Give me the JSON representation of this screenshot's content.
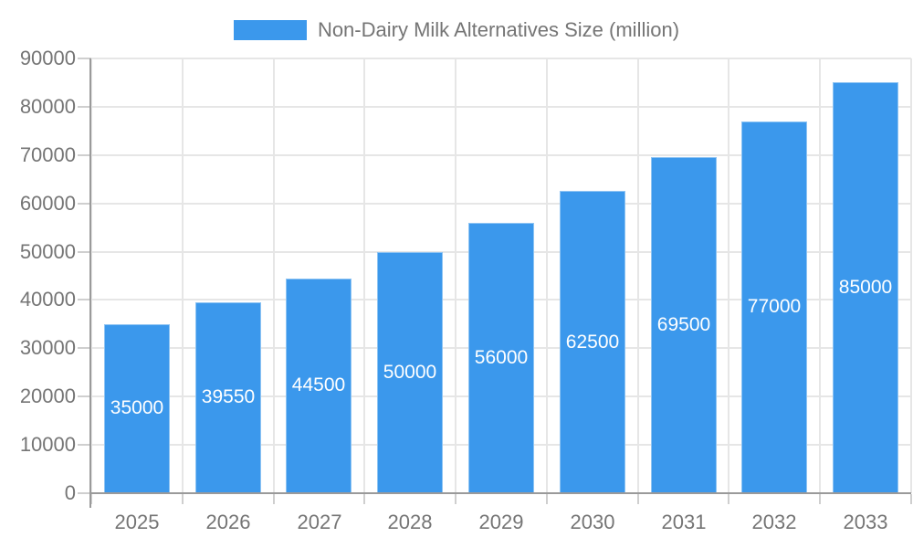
{
  "legend": {
    "label": "Non-Dairy Milk Alternatives Size (million)"
  },
  "chart_data": {
    "type": "bar",
    "title": "Non-Dairy Milk Alternatives Size (million)",
    "series_name": "Non-Dairy Milk Alternatives Size (million)",
    "categories": [
      "2025",
      "2026",
      "2027",
      "2028",
      "2029",
      "2030",
      "2031",
      "2032",
      "2033"
    ],
    "values": [
      35000,
      39550,
      44500,
      50000,
      56000,
      62500,
      69500,
      77000,
      85000
    ],
    "value_labels": [
      "35000",
      "39550",
      "44500",
      "50000",
      "56000",
      "62500",
      "69500",
      "77000",
      "85000"
    ],
    "xlabel": "",
    "ylabel": "",
    "ylim": [
      0,
      90000
    ],
    "ytick_interval": 10000,
    "ytick_labels": [
      "0",
      "10000",
      "20000",
      "30000",
      "40000",
      "50000",
      "60000",
      "70000",
      "80000",
      "90000"
    ],
    "legend_position": "top-center",
    "grid": "horizontal-and-vertical",
    "colors": {
      "bar_fill": "#3b98ec",
      "bar_edge": "#8ec4f3",
      "bar_value_text": "#ffffff",
      "axis_text": "#757575",
      "gridline": "#e6e6e6",
      "tick": "#cfcfcf",
      "axis_line": "#9a9a9a",
      "background": "#ffffff"
    }
  }
}
